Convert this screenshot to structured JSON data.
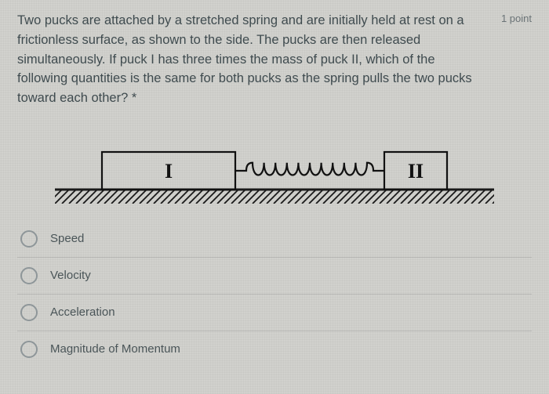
{
  "question": {
    "text": "Two pucks are attached by a stretched spring and are initially held at rest on a frictionless surface, as shown to the side. The pucks are then released simultaneously. If puck I has three times the mass of puck II, which of the following quantities is the same for both pucks as the spring pulls the two pucks toward each other? *",
    "points": "1 point"
  },
  "diagram": {
    "puck1_label": "I",
    "puck2_label": "II",
    "puck1_width": 170,
    "puck2_width": 80,
    "puck_height": 48,
    "spring_coils": 10,
    "spring_span": 190,
    "stroke": "#111111",
    "stroke_width": 2.2,
    "ground_hatch_color": "#1a1a1a",
    "ground_hatch_height": 18,
    "font_family": "Georgia, 'Times New Roman', serif",
    "label_fontsize": 26,
    "background": "transparent"
  },
  "options": [
    {
      "label": "Speed"
    },
    {
      "label": "Velocity"
    },
    {
      "label": "Acceleration"
    },
    {
      "label": "Magnitude of Momentum"
    }
  ],
  "colors": {
    "page_bg": "#d0d0cc",
    "text": "#4a5558",
    "muted": "#6a7376",
    "radio_border": "#8e9699",
    "divider": "rgba(0,0,0,0.10)"
  }
}
